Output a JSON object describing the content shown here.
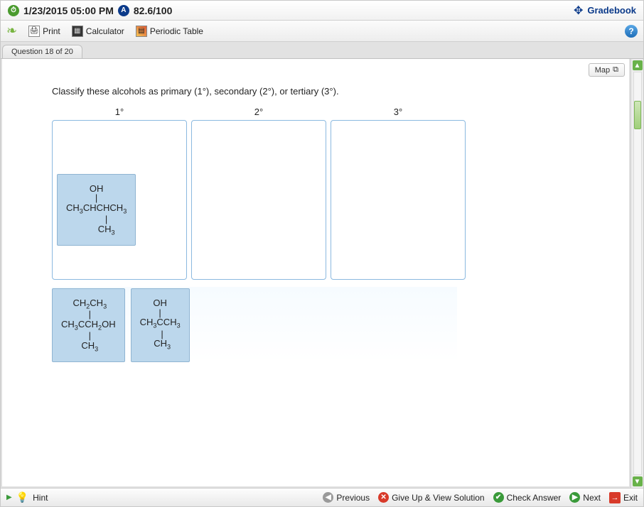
{
  "header": {
    "clock_icon_char": "⏱",
    "datetime": "1/23/2015 05:00 PM",
    "grade_icon_char": "A",
    "score": "82.6/100",
    "move_icon": "✥",
    "gradebook_label": "Gradebook"
  },
  "toolbar": {
    "leaf": "❧",
    "print": {
      "label": "Print",
      "icon": "🖨"
    },
    "calculator": {
      "label": "Calculator",
      "icon": "▦"
    },
    "periodic": {
      "label": "Periodic Table",
      "icon": "▤"
    },
    "help_char": "?"
  },
  "tab": {
    "label": "Question 18 of 20"
  },
  "page": {
    "map_btn": "Map",
    "map_icon": "⧉",
    "question": "Classify these alcohols as primary (1°), secondary (2°), or tertiary (3°).",
    "columns": [
      {
        "label": "1°"
      },
      {
        "label": "2°"
      },
      {
        "label": "3°"
      }
    ],
    "tiles": {
      "placed_1": {
        "line1": "OH",
        "line2": "|",
        "line3_html": "CH<sub>3</sub>CHCHCH<sub>3</sub>",
        "line4": "|",
        "line5_html": "CH<sub>3</sub>"
      },
      "unplaced_a": {
        "line1_html": "CH<sub>2</sub>CH<sub>3</sub>",
        "line2": "|",
        "line3_html": "CH<sub>3</sub>CCH<sub>2</sub>OH",
        "line4": "|",
        "line5_html": "CH<sub>3</sub>"
      },
      "unplaced_b": {
        "line1": "OH",
        "line2": "|",
        "line3_html": "CH<sub>3</sub>CCH<sub>3</sub>",
        "line4": "|",
        "line5_html": "CH<sub>3</sub>"
      }
    },
    "colors": {
      "tile_bg": "#bcd7ec",
      "tile_border": "#8fb4d2",
      "dropzone_border": "#8bb9e0"
    }
  },
  "footer": {
    "hint": "Hint",
    "previous": "Previous",
    "giveup": "Give Up & View Solution",
    "check": "Check Answer",
    "next": "Next",
    "exit": "Exit"
  }
}
